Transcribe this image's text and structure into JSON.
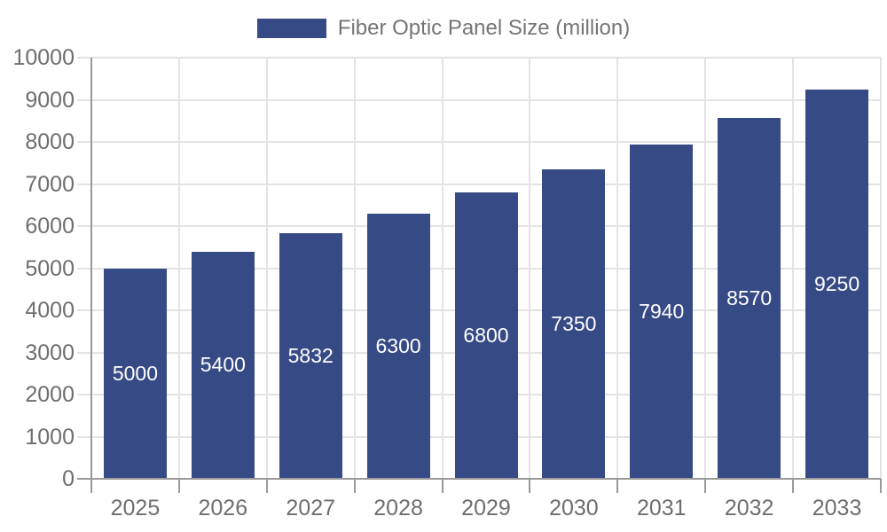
{
  "chart_data": {
    "type": "bar",
    "title": "",
    "legend": {
      "label": "Fiber Optic Panel Size (million)",
      "position": "top-center"
    },
    "categories": [
      "2025",
      "2026",
      "2027",
      "2028",
      "2029",
      "2030",
      "2031",
      "2032",
      "2033"
    ],
    "series": [
      {
        "name": "Fiber Optic Panel Size (million)",
        "values": [
          5000,
          5400,
          5832,
          6300,
          6800,
          7350,
          7940,
          8570,
          9250
        ]
      }
    ],
    "value_labels_shown": true,
    "xlabel": "",
    "ylabel": "",
    "ylim": [
      0,
      10000
    ],
    "ytick_interval": 1000,
    "ytick_labels": [
      "0",
      "1000",
      "2000",
      "3000",
      "4000",
      "5000",
      "6000",
      "7000",
      "8000",
      "9000",
      "10000"
    ],
    "grid": true
  },
  "colors": {
    "bar": "#364A85",
    "grid": "#E3E3E6",
    "axis_line": "#9A9A9A",
    "axis_text": "#6E6E6E",
    "legend_text": "#757575",
    "value_label_text": "#FFFFFF",
    "background": "#FFFFFF"
  }
}
